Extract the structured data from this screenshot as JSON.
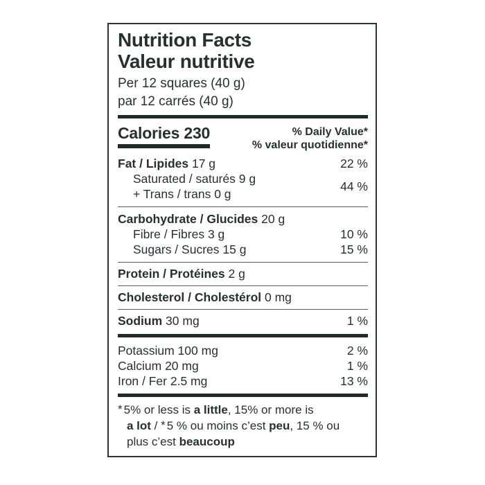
{
  "nutrition": {
    "title_en": "Nutrition Facts",
    "title_fr": "Valeur nutritive",
    "serving_en": "Per 12 squares (40 g)",
    "serving_fr": "par 12 carrés (40 g)",
    "calories_label": "Calories 230",
    "daily_value_header_en": "% Daily Value*",
    "daily_value_header_fr": "% valeur quotidienne*",
    "fat": {
      "name": "Fat / Lipides",
      "amount": " 17 g",
      "dv": "22 %",
      "saturated": "Saturated / saturés 9 g",
      "trans": "+ Trans / trans 0 g",
      "sat_trans_dv": "44 %"
    },
    "carbohydrate": {
      "name": "Carbohydrate / Glucides",
      "amount": " 20 g",
      "fibre": "Fibre / Fibres 3 g",
      "fibre_dv": "10 %",
      "sugars": "Sugars / Sucres 15 g",
      "sugars_dv": "15 %"
    },
    "protein": {
      "name": "Protein / Protéines",
      "amount": " 2 g"
    },
    "cholesterol": {
      "name": "Cholesterol / Cholestérol",
      "amount": " 0 mg"
    },
    "sodium": {
      "name": "Sodium",
      "amount": " 30 mg",
      "dv": "1 %"
    },
    "potassium": {
      "name": "Potassium 100 mg",
      "dv": "2 %"
    },
    "calcium": {
      "name": "Calcium 20 mg",
      "dv": "1 %"
    },
    "iron": {
      "name": "Iron / Fer 2.5 mg",
      "dv": "13 %"
    },
    "footnote": {
      "star": "*",
      "l1_pre": "5% or less is ",
      "l1_bold": "a little",
      "l1_post": ", 15% or more is",
      "l2_bold1": "a lot",
      "l2_sep": " / ",
      "l2_star": "*",
      "l2_text": "5 % ou moins c’est ",
      "l2_bold2": "peu",
      "l2_post": ", 15 % ou",
      "l3_pre": "plus c’est ",
      "l3_bold": "beaucoup"
    },
    "colors": {
      "ink": "#25312a",
      "bar": "#1f2b24",
      "thin_rule": "#5c5c5c",
      "background": "#ffffff"
    }
  }
}
